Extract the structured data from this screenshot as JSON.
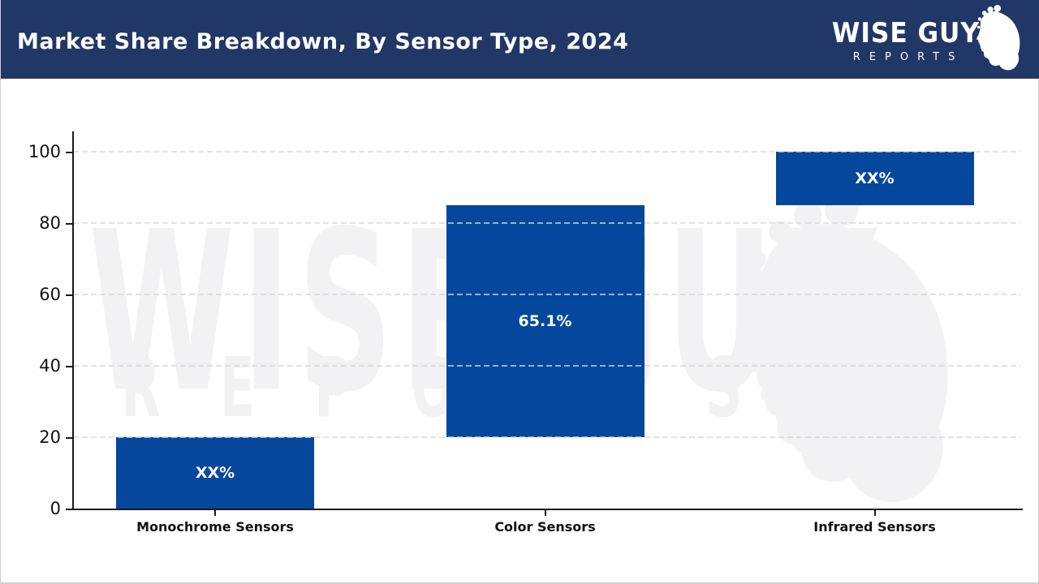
{
  "header": {
    "title": "Market Share Breakdown, By Sensor Type, 2024",
    "logo": {
      "wordmark": "WISE GUY",
      "subtext": "REPORTS"
    }
  },
  "watermark": {
    "wordmark": "WISE GUY",
    "subtext": "REPORTS"
  },
  "chart_data": {
    "type": "bar",
    "variant": "waterfall",
    "title": "Market Share Breakdown, By Sensor Type, 2024",
    "categories": [
      "Monochrome Sensors",
      "Color Sensors",
      "Infrared Sensors"
    ],
    "segments": [
      {
        "category": "Monochrome Sensors",
        "start": 0,
        "end": 20,
        "value": 20,
        "label": "XX%"
      },
      {
        "category": "Color Sensors",
        "start": 20,
        "end": 85.1,
        "value": 65.1,
        "label": "65.1%"
      },
      {
        "category": "Infrared Sensors",
        "start": 85.1,
        "end": 100,
        "value": 14.9,
        "label": "XX%"
      }
    ],
    "xlabel": "",
    "ylabel": "",
    "yticks": [
      0,
      20,
      40,
      60,
      80,
      100
    ],
    "ylim": [
      0,
      105
    ],
    "grid": "horizontal-dashed",
    "legend": null,
    "bar_color": "#05479C",
    "bar_label_color": "#FFFFFF"
  },
  "colors": {
    "header_bg": "#213765",
    "axis": "#1A1A1A",
    "grid_dash": "#DCDCDC",
    "watermark": "#F2F2F4",
    "page_border": "#CFCFCF",
    "tick_label": "#111111"
  }
}
